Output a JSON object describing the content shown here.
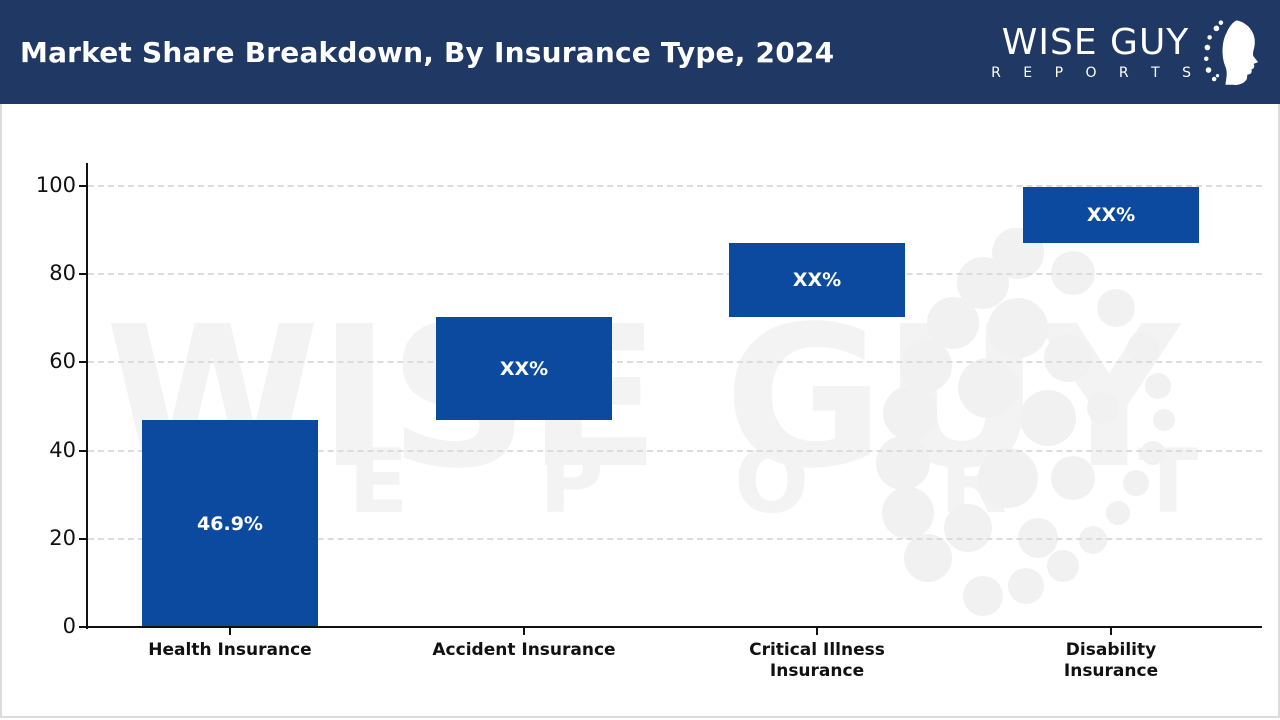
{
  "header": {
    "bg_color": "#1f3864",
    "logo": {
      "line1": "WISE GUY",
      "line2": "R E P O R T S"
    }
  },
  "watermark": {
    "line1": "WISE GUY",
    "line2": "R E P O R T S"
  },
  "chart_data": {
    "type": "bar",
    "variant": "waterfall",
    "title": "Market Share Breakdown, By Insurance Type, 2024",
    "categories": [
      {
        "lines": [
          "Health Insurance"
        ]
      },
      {
        "lines": [
          "Accident Insurance"
        ]
      },
      {
        "lines": [
          "Critical Illness",
          "Insurance"
        ]
      },
      {
        "lines": [
          "Disability",
          "Insurance"
        ]
      }
    ],
    "segments": [
      {
        "category": "Health Insurance",
        "start": 0,
        "end": 46.9,
        "label": "46.9%"
      },
      {
        "category": "Accident Insurance",
        "start": 46.9,
        "end": 70.3,
        "label": "XX%"
      },
      {
        "category": "Critical Illness Insurance",
        "start": 70.3,
        "end": 87.1,
        "label": "XX%"
      },
      {
        "category": "Disability Insurance",
        "start": 87.1,
        "end": 99.8,
        "label": "XX%"
      }
    ],
    "ylim": [
      0,
      100
    ],
    "y_ticks": [
      0,
      20,
      40,
      60,
      80,
      100
    ],
    "bar_color": "#0b4a9e",
    "grid": "horizontal-dashed",
    "legend": "none"
  }
}
